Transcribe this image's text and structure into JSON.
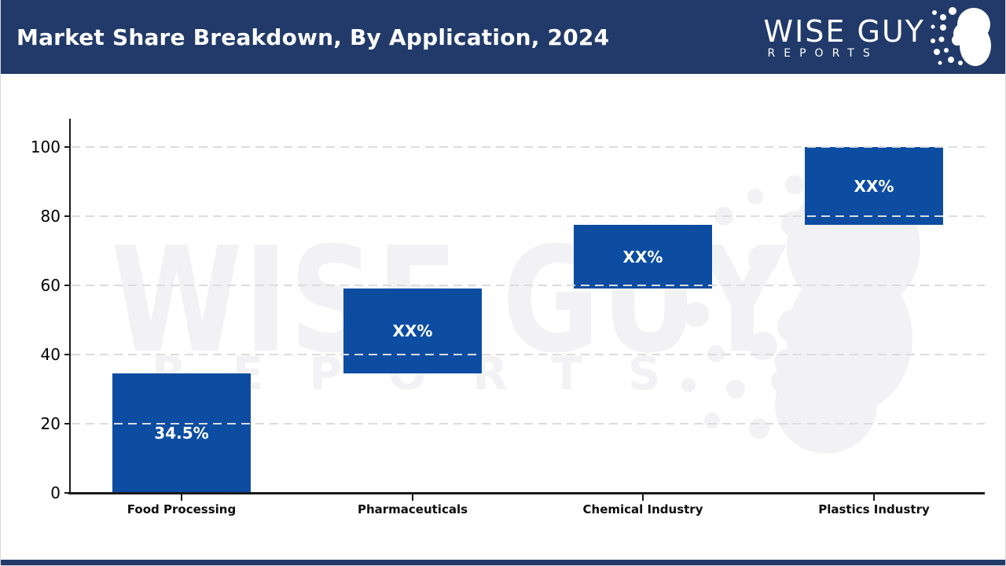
{
  "header": {
    "background": "#213A69",
    "title": "Market Share Breakdown, By Application, 2024",
    "logo": {
      "brand_line1": "WISE GUY",
      "brand_line2": "REPORTS"
    }
  },
  "watermark": {
    "line1": "WISE GUY",
    "line2": "REPORTS",
    "color": "#f2f2f4"
  },
  "chart_data": {
    "type": "bar",
    "variant": "waterfall-floating-bars",
    "title": "Market Share Breakdown, By Application, 2024",
    "categories": [
      "Food Processing",
      "Pharmaceuticals",
      "Chemical Industry",
      "Plastics Industry"
    ],
    "segments": [
      {
        "category": "Food Processing",
        "start": 0,
        "end": 34.5,
        "label": "34.5%"
      },
      {
        "category": "Pharmaceuticals",
        "start": 34.5,
        "end": 59,
        "label": "XX%"
      },
      {
        "category": "Chemical Industry",
        "start": 59,
        "end": 77.5,
        "label": "XX%"
      },
      {
        "category": "Plastics Industry",
        "start": 77.5,
        "end": 100,
        "label": "XX%"
      }
    ],
    "yticks": [
      0,
      20,
      40,
      60,
      80,
      100
    ],
    "ylim": [
      0,
      108
    ],
    "xlabel": "",
    "ylabel": "",
    "grid": "horizontal-dashed",
    "legend": "none",
    "bar_color": "#0C4DA2",
    "bar_label_color": "#ffffff",
    "axis_color": "#1a1a1a",
    "gridline_color": "#dcdcdc",
    "background_color": "#ffffff"
  }
}
